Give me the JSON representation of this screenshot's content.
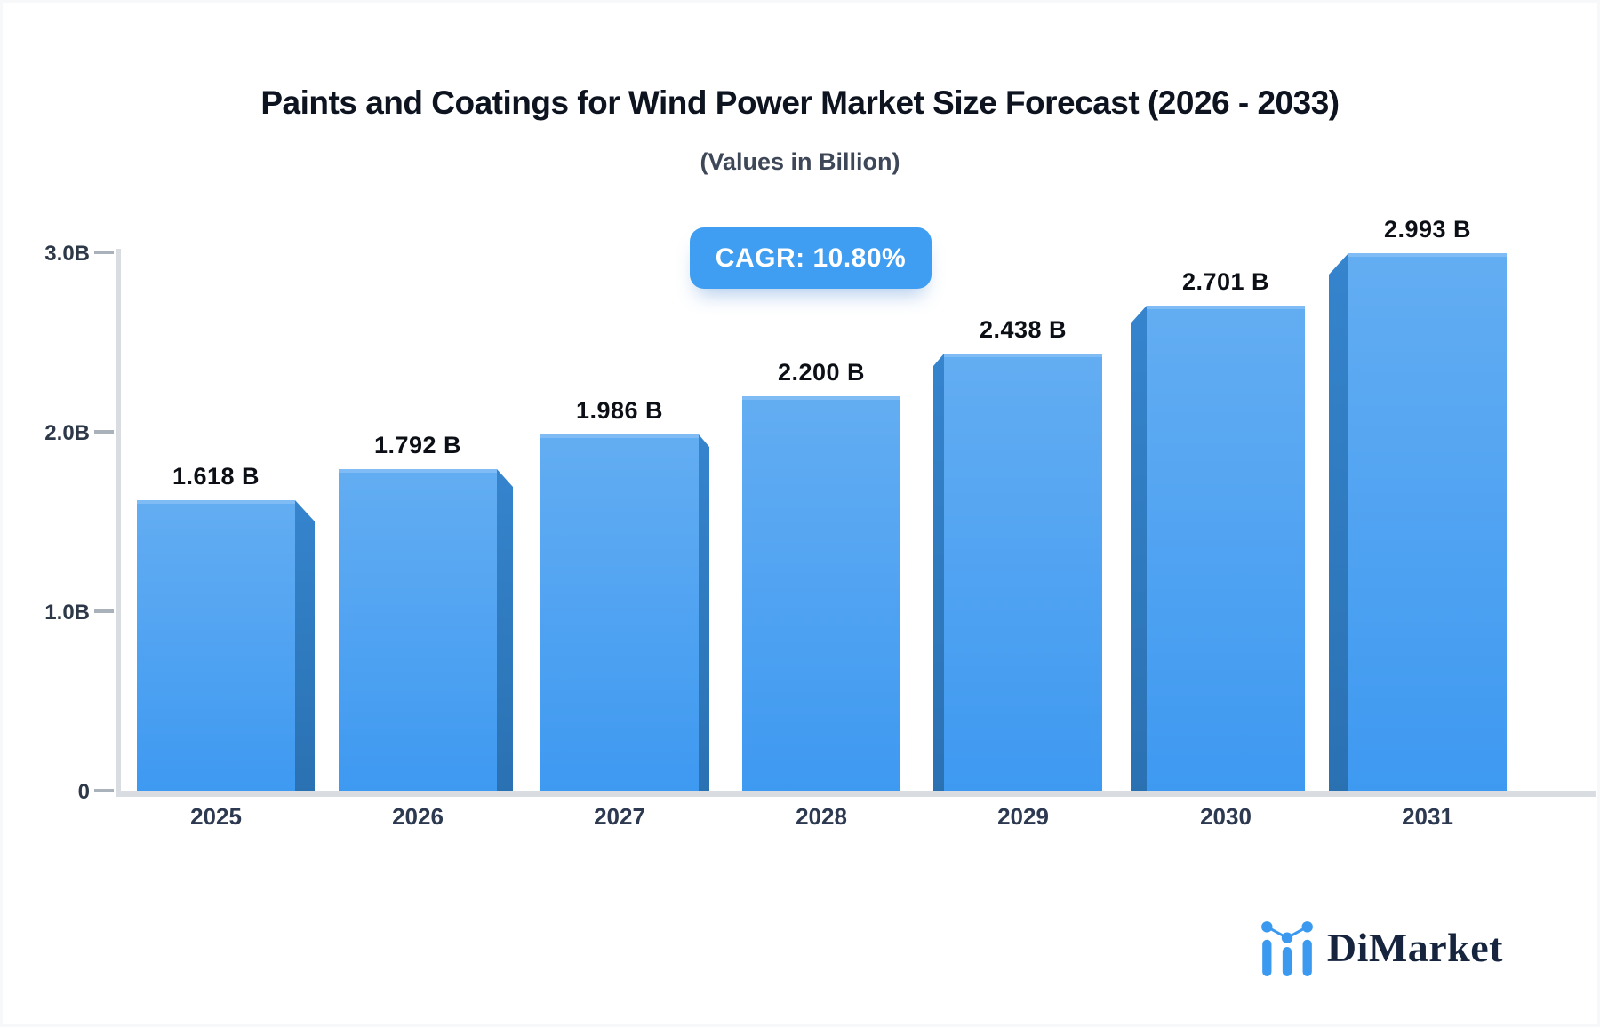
{
  "header": {
    "title": "Paints and Coatings for Wind Power Market Size Forecast (2026 - 2033)",
    "subtitle": "(Values in Billion)",
    "cagr_label": "CAGR: 10.80%"
  },
  "chart_data": {
    "type": "bar",
    "title": "Paints and Coatings for Wind Power Market Size Forecast (2026 - 2033)",
    "subtitle": "(Values in Billion)",
    "unit": "Billion",
    "cagr": "10.80%",
    "categories": [
      "2025",
      "2026",
      "2027",
      "2028",
      "2029",
      "2030",
      "2031"
    ],
    "values": [
      1.618,
      1.792,
      1.986,
      2.2,
      2.438,
      2.701,
      2.993
    ],
    "value_labels": [
      "1.618 B",
      "1.792 B",
      "1.986 B",
      "2.200 B",
      "2.438 B",
      "2.701 B",
      "2.993 B"
    ],
    "xlabel": "",
    "ylabel": "",
    "ytick_values": [
      0,
      1,
      2,
      3
    ],
    "ytick_labels": [
      "0",
      "1.0B",
      "2.0B",
      "3.0B"
    ],
    "ylim": [
      0,
      3.15
    ],
    "grid": false,
    "legend": false,
    "bar_style": "3d-beveled",
    "colors": {
      "bar_top": "#63adf2",
      "bar_bottom": "#3e99f1",
      "bar_cap_highlight": "#7fbcf5",
      "bar_side_top": "#3584cd",
      "bar_side_bottom": "#2a71b2",
      "axis_line": "#d9dce1",
      "tick_dash": "#a9b1ba",
      "tick_label": "#2d3848",
      "category_label": "#2c3950",
      "value_label": "#0c1016"
    }
  },
  "branding": {
    "logo_text": "DiMarket",
    "logo_icon": "bar-chart-with-dots-icon",
    "logo_text_color": "#16243e",
    "logo_icon_color": "#3b99f0"
  }
}
